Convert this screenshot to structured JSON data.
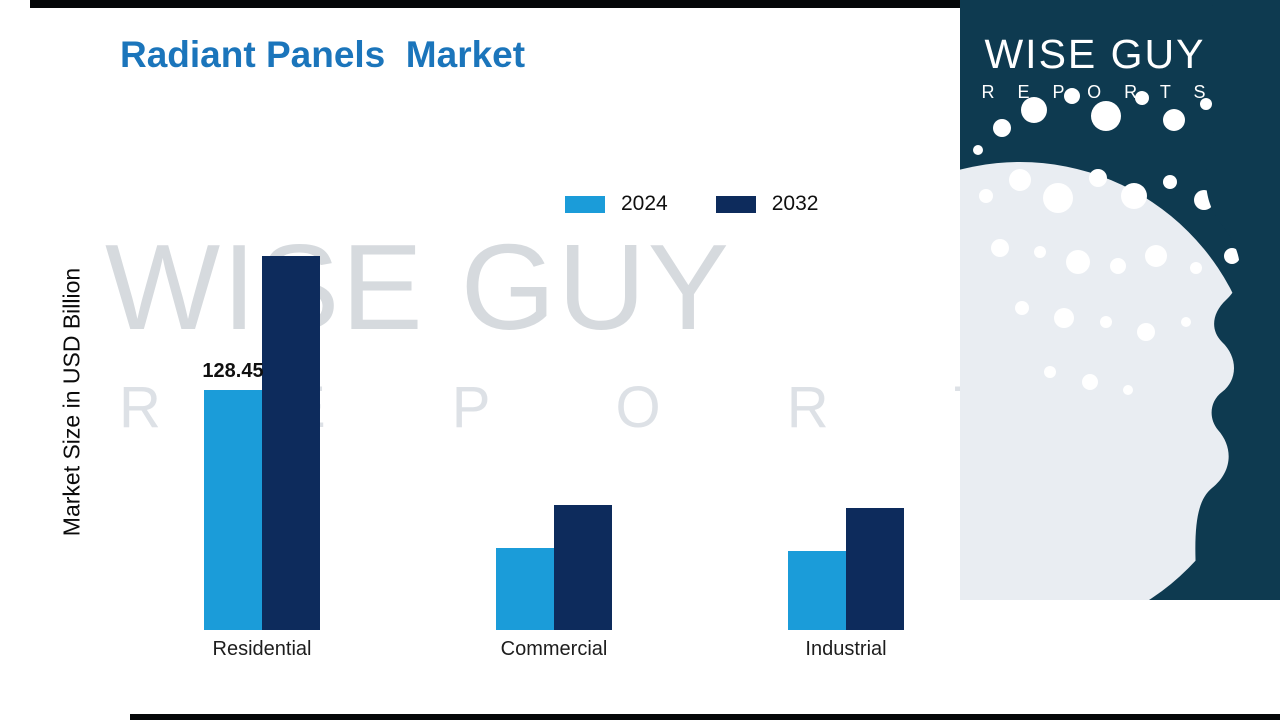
{
  "page": {
    "title": "Radiant Panels  Market"
  },
  "logo": {
    "line1": "WISE GUY",
    "line2": "R E P O R T S"
  },
  "watermark": {
    "line1": "WISE GUY",
    "line2": "R E P O R T S"
  },
  "colors": {
    "title": "#1b75bb",
    "series_2024": "#1b9cd9",
    "series_2032": "#0d2b5c",
    "side_panel": "#0e3a50"
  },
  "chart_data": {
    "type": "bar",
    "title": "Radiant Panels Market",
    "xlabel": "",
    "ylabel": "Market Size in USD Billion",
    "categories": [
      "Residential",
      "Commercial",
      "Industrial"
    ],
    "series": [
      {
        "name": "2024",
        "color": "#1b9cd9",
        "values": [
          128.45,
          44,
          42
        ]
      },
      {
        "name": "2032",
        "color": "#0d2b5c",
        "values": [
          200,
          67,
          65
        ]
      }
    ],
    "data_labels": [
      {
        "category": "Residential",
        "series": "2024",
        "text": "128.45"
      }
    ],
    "ylim": [
      0,
      210
    ],
    "grid": false,
    "legend_position": "top"
  }
}
